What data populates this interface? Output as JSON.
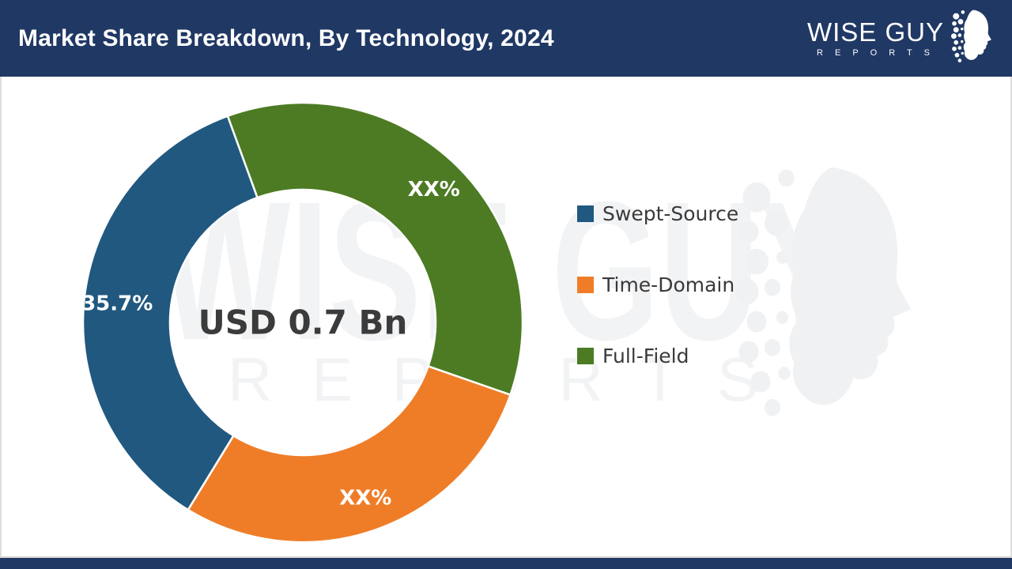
{
  "header": {
    "title": "Market Share Breakdown, By Technology, 2024",
    "logo_line1": "WISE GUY",
    "logo_line2": "R E P O R T S"
  },
  "watermark": {
    "line1": "WISE GUY",
    "line2": "R E P O R T S"
  },
  "colors": {
    "navy": "#203864",
    "swept_source_blue": "#21587F",
    "time_domain_orange": "#EF7D28",
    "full_field_green": "#4C7B23",
    "center_text": "#3B3B3B",
    "watermark_gray": "#F2F3F5"
  },
  "chart_data": {
    "type": "pie",
    "subtype": "donut",
    "title": "Market Share Breakdown, By Technology, 2024",
    "center_label": "USD 0.7 Bn",
    "start_angle_deg": 340,
    "direction": "clockwise",
    "slices": [
      {
        "name": "Full-Field",
        "percent": 35.9,
        "label": "XX%",
        "color": "#4C7B23"
      },
      {
        "name": "Time-Domain",
        "percent": 28.4,
        "label": "XX%",
        "color": "#EF7D28"
      },
      {
        "name": "Swept-Source",
        "percent": 35.7,
        "label": "35.7%",
        "color": "#21587F"
      }
    ],
    "legend_position": "right",
    "legend": [
      {
        "label": "Swept-Source",
        "color": "#21587F"
      },
      {
        "label": "Time-Domain",
        "color": "#EF7D28"
      },
      {
        "label": "Full-Field",
        "color": "#4C7B23"
      }
    ]
  }
}
